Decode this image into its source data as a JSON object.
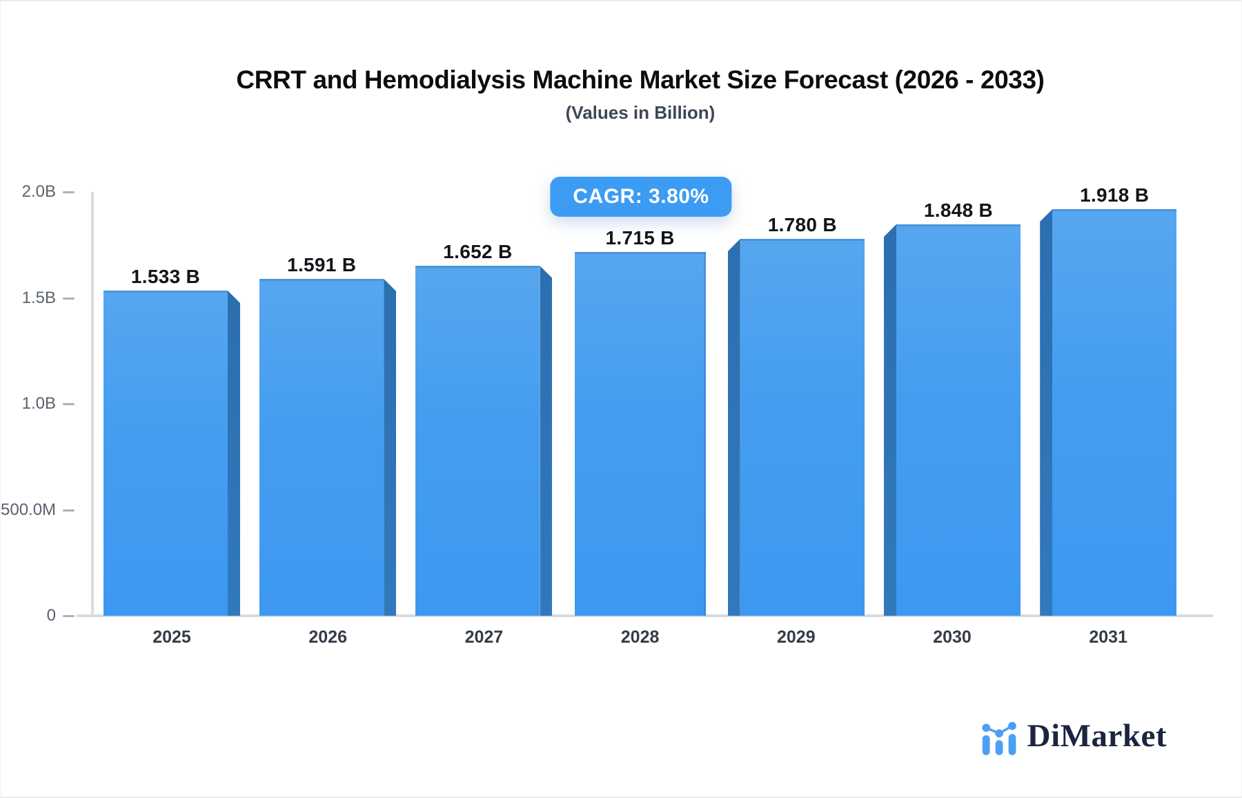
{
  "header": {
    "title": "CRRT and Hemodialysis Machine Market Size Forecast (2026 - 2033)",
    "subtitle": "(Values in Billion)"
  },
  "badge": {
    "label": "CAGR: 3.80%"
  },
  "chart_data": {
    "type": "bar",
    "title": "CRRT and Hemodialysis Machine Market Size Forecast (2026 - 2033)",
    "subtitle": "(Values in Billion)",
    "cagr_percent": 3.8,
    "categories": [
      "2025",
      "2026",
      "2027",
      "2028",
      "2029",
      "2030",
      "2031"
    ],
    "values": [
      1.533,
      1.591,
      1.652,
      1.715,
      1.78,
      1.848,
      1.918
    ],
    "value_labels": [
      "1.533 B",
      "1.591 B",
      "1.652 B",
      "1.715 B",
      "1.780 B",
      "1.848 B",
      "1.918 B"
    ],
    "unit": "B",
    "ylim": [
      0,
      2.0
    ],
    "yticks": [
      {
        "value": 0.0,
        "label": "0"
      },
      {
        "value": 0.5,
        "label": "500.0M"
      },
      {
        "value": 1.0,
        "label": "1.0B"
      },
      {
        "value": 1.5,
        "label": "1.5B"
      },
      {
        "value": 2.0,
        "label": "2.0B"
      }
    ],
    "grid": false,
    "legend": false
  },
  "footer": {
    "logo_text": "DiMarket"
  },
  "colors": {
    "bar_face": "#449df0",
    "bar_face_light": "#57a6ef",
    "bar_side": "#2e74b6",
    "badge_bg": "#3c9cf3",
    "badge_text": "#ffffff",
    "axis_line": "#d6dce2",
    "tick_dash": "#a9b2bd",
    "tick_text": "#59626e",
    "value_text": "#121419",
    "title_text": "#0c0d10",
    "subtitle_text": "#3d4654",
    "logo_navy": "#1b2540",
    "logo_blue": "#4c9ff5"
  }
}
